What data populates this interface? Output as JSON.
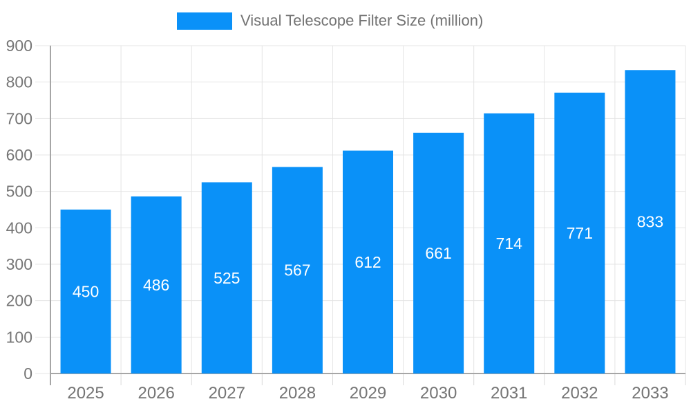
{
  "legend": {
    "label": "Visual Telescope Filter Size (million)"
  },
  "chart_data": {
    "type": "bar",
    "title": "Visual Telescope Filter Size (million)",
    "categories": [
      "2025",
      "2026",
      "2027",
      "2028",
      "2029",
      "2030",
      "2031",
      "2032",
      "2033"
    ],
    "values": [
      450,
      486,
      525,
      567,
      612,
      661,
      714,
      771,
      833
    ],
    "xlabel": "",
    "ylabel": "",
    "ylim": [
      0,
      900
    ],
    "yticks": [
      0,
      100,
      200,
      300,
      400,
      500,
      600,
      700,
      800,
      900
    ],
    "grid": true,
    "legend_position": "top-center",
    "value_labels_position": "inside-middle",
    "colors": {
      "bar": "#0a91f8",
      "value_label": "#ffffff",
      "axis_line": "#a6a6a6",
      "gridline": "#e4e4e4",
      "tick": "#d9d9d9",
      "tick_label": "#757575",
      "legend_text": "#737373",
      "background": "#ffffff"
    }
  }
}
